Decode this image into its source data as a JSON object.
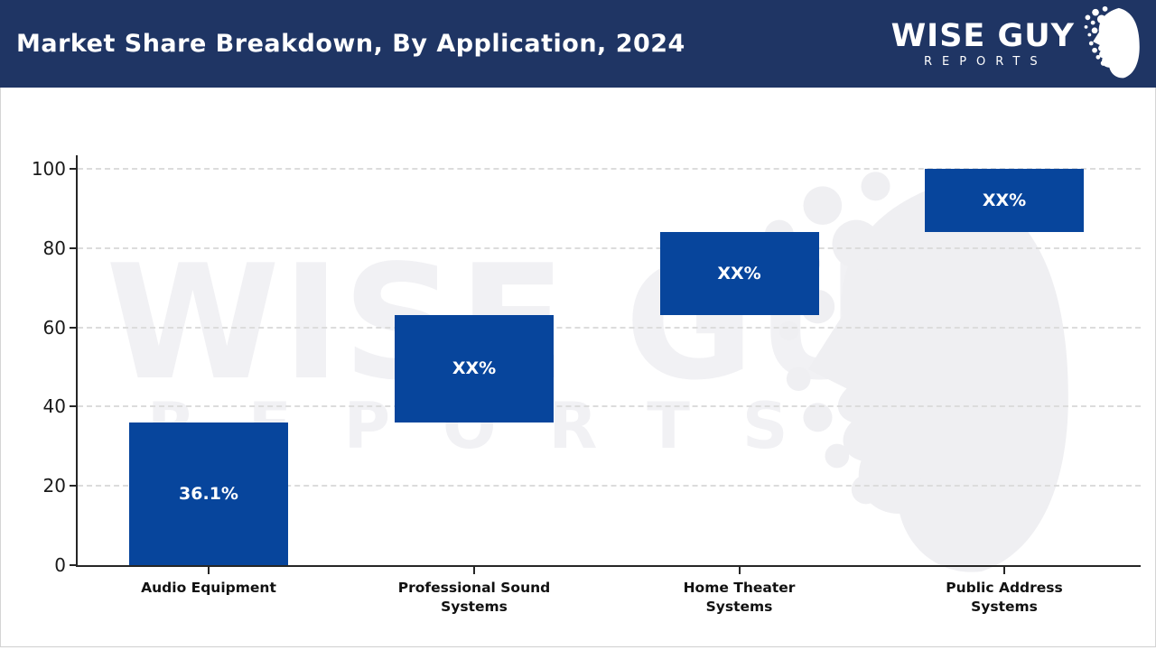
{
  "header": {
    "title": "Market Share Breakdown, By Application, 2024",
    "logo": {
      "wordmark": "WISE GUY",
      "subtext": "REPORTS"
    }
  },
  "watermark": {
    "wordmark": "WISE GUY",
    "subtext": "REPORTS"
  },
  "chart_data": {
    "type": "bar",
    "subtype": "floating-waterfall",
    "title": "Market Share Breakdown, By Application, 2024",
    "categories": [
      "Audio Equipment",
      "Professional Sound\nSystems",
      "Home Theater\nSystems",
      "Public Address\nSystems"
    ],
    "segments": [
      {
        "category": "Audio Equipment",
        "start": 0,
        "end": 36.1,
        "label": "36.1%"
      },
      {
        "category": "Professional Sound Systems",
        "start": 36.1,
        "end": 63.1,
        "label": "XX%"
      },
      {
        "category": "Home Theater Systems",
        "start": 63.1,
        "end": 84.1,
        "label": "XX%"
      },
      {
        "category": "Public Address Systems",
        "start": 84.1,
        "end": 100,
        "label": "XX%"
      }
    ],
    "ylim": [
      0,
      100
    ],
    "yticks": [
      0,
      20,
      40,
      60,
      80,
      100
    ],
    "xlabel": "",
    "ylabel": "",
    "grid": "horizontal-dashed",
    "legend": "none",
    "bar_color": "#07459c",
    "bar_label_color": "#ffffff",
    "axis_color": "#262626",
    "gridline_color": "#dcdcdc"
  }
}
